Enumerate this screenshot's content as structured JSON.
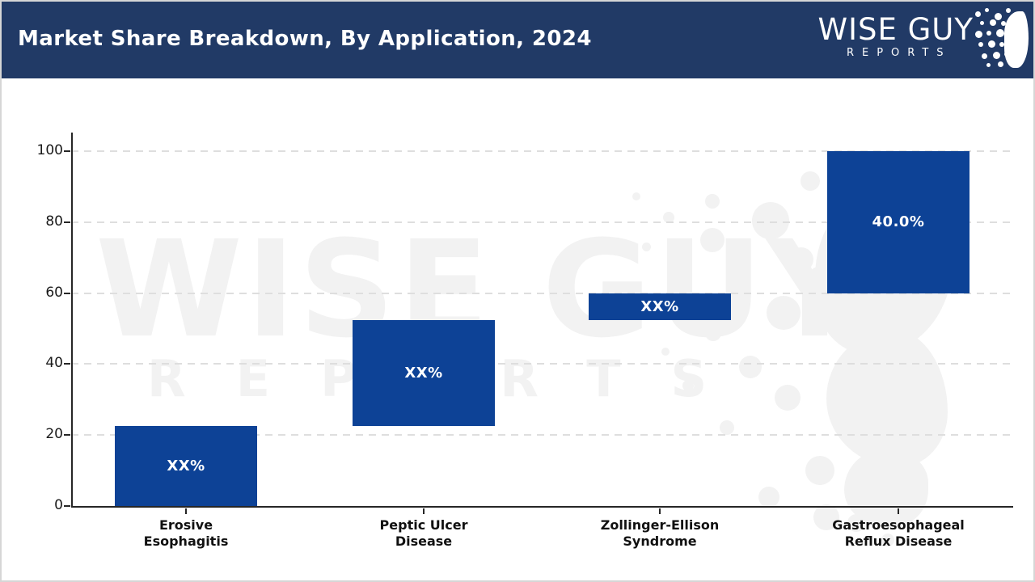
{
  "header": {
    "title": "Market Share Breakdown, By Application, 2024",
    "logo": {
      "wordmark": "WISE GUY",
      "subtext": "REPORTS",
      "icon": "dotted-face-profile"
    }
  },
  "watermark": {
    "line1": "WISE GUY",
    "line2": "REPORTS",
    "icon": "dotted-face-profile"
  },
  "chart_data": {
    "type": "bar",
    "subtype": "waterfall-style floating bars",
    "title": "Market Share Breakdown, By Application, 2024",
    "categories": [
      "Erosive Esophagitis",
      "Peptic Ulcer Disease",
      "Zollinger-Ellison Syndrome",
      "Gastroesophageal Reflux Disease"
    ],
    "category_lines": [
      [
        "Erosive",
        "Esophagitis"
      ],
      [
        "Peptic Ulcer",
        "Disease"
      ],
      [
        "Zollinger-Ellison",
        "Syndrome"
      ],
      [
        "Gastroesophageal",
        "Reflux Disease"
      ]
    ],
    "segments": [
      {
        "category": "Erosive Esophagitis",
        "start": 0,
        "end": 22.5,
        "value": 22.5,
        "label": "XX%"
      },
      {
        "category": "Peptic Ulcer Disease",
        "start": 22.5,
        "end": 52.5,
        "value": 30,
        "label": "XX%"
      },
      {
        "category": "Zollinger-Ellison Syndrome",
        "start": 52.5,
        "end": 60,
        "value": 7.5,
        "label": "XX%"
      },
      {
        "category": "Gastroesophageal Reflux Disease",
        "start": 60,
        "end": 100,
        "value": 40.0,
        "label": "40.0%"
      }
    ],
    "yticks": [
      0,
      20,
      40,
      60,
      80,
      100
    ],
    "ylim": [
      0,
      105
    ],
    "xlabel": "",
    "ylabel": "",
    "legend": "none",
    "grid": "horizontal-dashed",
    "bar_color": "#0d4296",
    "bar_label_color": "#ffffff",
    "axis_color": "#262626",
    "grid_color": "#dedede",
    "header_color": "#213a66",
    "watermark_color": "#f2f2f2"
  }
}
